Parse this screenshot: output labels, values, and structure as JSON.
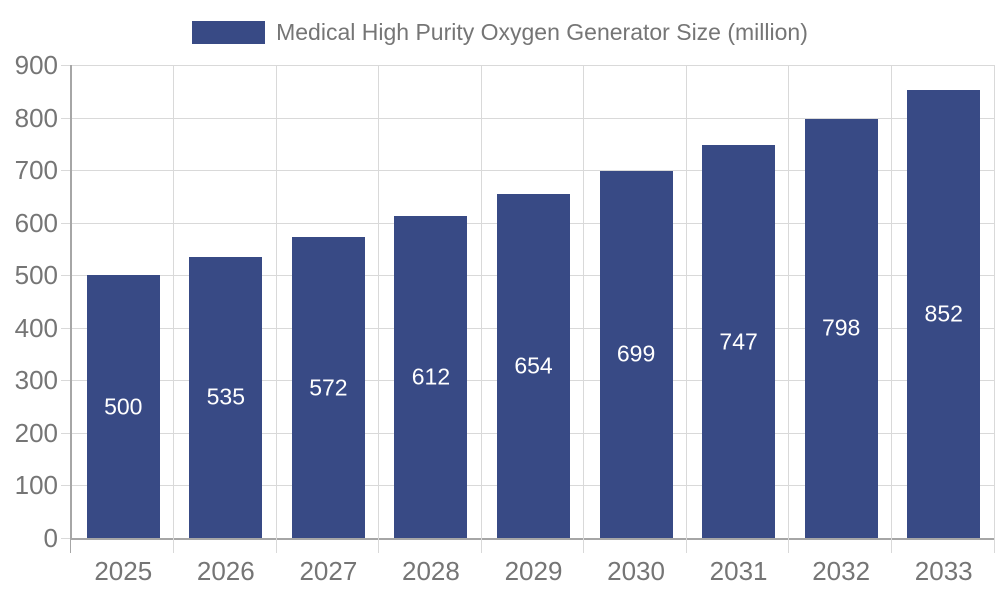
{
  "legend": {
    "label": "Medical High Purity Oxygen Generator Size (million)"
  },
  "colors": {
    "background": "#ffffff",
    "bar": "#384a85",
    "grid": "#d9d9d9",
    "axis": "#a6a6a6",
    "tick_label_text": "#757575",
    "value_label_text": "#ffffff"
  },
  "chart_data": {
    "type": "bar",
    "title": "Medical High Purity Oxygen Generator Size (million)",
    "categories": [
      "2025",
      "2026",
      "2027",
      "2028",
      "2029",
      "2030",
      "2031",
      "2032",
      "2033"
    ],
    "values": [
      500,
      535,
      572,
      612,
      654,
      699,
      747,
      798,
      852
    ],
    "xlabel": "",
    "ylabel": "",
    "ylim": [
      0,
      900
    ],
    "yticks": [
      0,
      100,
      200,
      300,
      400,
      500,
      600,
      700,
      800,
      900
    ],
    "grid": true,
    "legend_position": "top-center",
    "value_labels": "inside-center-white"
  }
}
